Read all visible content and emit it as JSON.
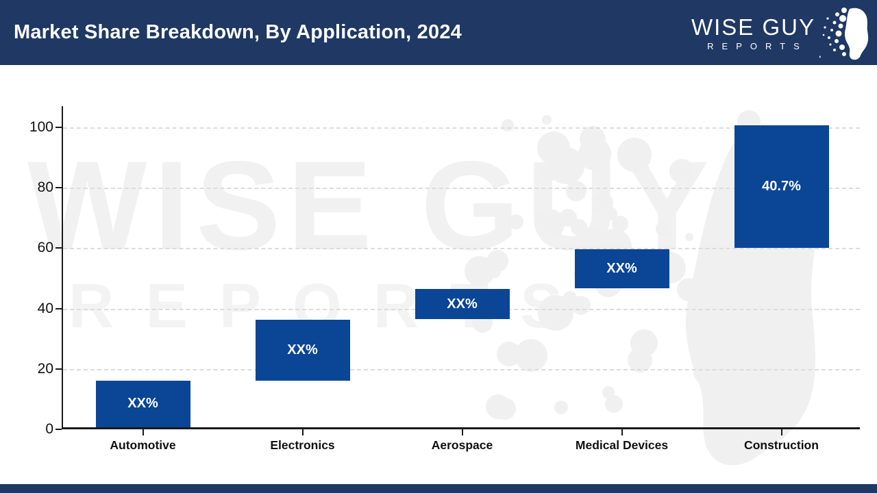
{
  "header": {
    "title": "Market Share Breakdown, By Application, 2024",
    "logo": {
      "brand_line1": "WISE GUY",
      "brand_line2": "REPORTS"
    }
  },
  "watermark": {
    "line1": "WISE GUY",
    "line2": "REPORTS"
  },
  "chart_data": {
    "type": "bar",
    "subtype": "waterfall",
    "title": "Market Share Breakdown, By Application, 2024",
    "categories": [
      "Automotive",
      "Electronics",
      "Aerospace",
      "Medical Devices",
      "Construction"
    ],
    "segments": [
      {
        "category": "Automotive",
        "start": 0,
        "end": 15.5,
        "label": "XX%"
      },
      {
        "category": "Electronics",
        "start": 15.5,
        "end": 35.5,
        "label": "XX%"
      },
      {
        "category": "Aerospace",
        "start": 35.8,
        "end": 45.8,
        "label": "XX%"
      },
      {
        "category": "Medical Devices",
        "start": 46,
        "end": 59,
        "label": "XX%"
      },
      {
        "category": "Construction",
        "start": 59.3,
        "end": 100,
        "label": "40.7%"
      }
    ],
    "yticks": [
      0,
      20,
      40,
      60,
      80,
      100
    ],
    "ylim": [
      0,
      107
    ],
    "xlabel": "",
    "ylabel": "",
    "grid": "dashed-horizontal",
    "legend": "none"
  },
  "colors": {
    "header_bg": "#1f3864",
    "footer_bg": "#1f3864",
    "bar": "#0a4596",
    "bar_label": "#ffffff",
    "grid": "#dcdcdc",
    "axis": "#1a1a1a",
    "watermark": "#f1f1f1"
  }
}
